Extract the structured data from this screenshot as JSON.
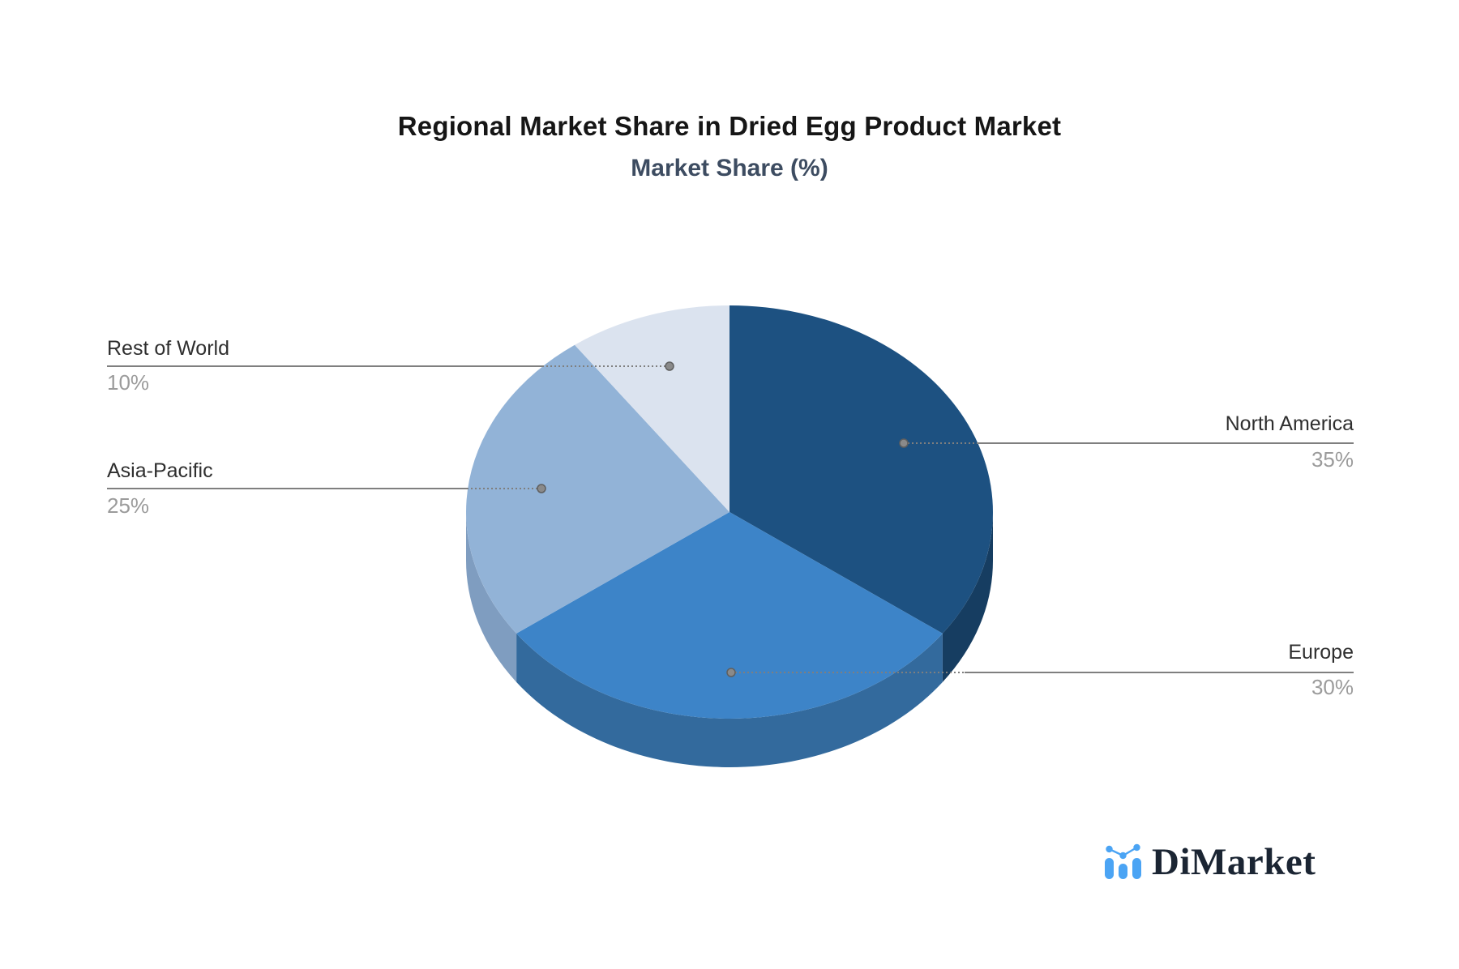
{
  "header": {
    "title": "Regional Market Share in Dried Egg Product Market",
    "subtitle": "Market Share (%)"
  },
  "logo": {
    "text": "DiMarket",
    "icon": "bar-line-chart-icon",
    "bar_color": "#4ba4f4",
    "text_color": "#1b2533"
  },
  "chart_data": {
    "type": "pie",
    "title": "Regional Market Share in Dried Egg Product Market",
    "subtitle": "Market Share (%)",
    "unit": "%",
    "effect": "3d",
    "start_angle_deg": 0,
    "direction": "clockwise",
    "legend_position": "none",
    "series": [
      {
        "name": "North America",
        "value": 35,
        "pct_label": "35%",
        "color": "#1d5181",
        "side_color": "#163d61",
        "label_side": "right"
      },
      {
        "name": "Europe",
        "value": 30,
        "pct_label": "30%",
        "color": "#3d84c8",
        "side_color": "#336a9d",
        "label_side": "right"
      },
      {
        "name": "Asia-Pacific",
        "value": 25,
        "pct_label": "25%",
        "color": "#92b3d7",
        "side_color": "#7f9dc0",
        "label_side": "left"
      },
      {
        "name": "Rest of World",
        "value": 10,
        "pct_label": "10%",
        "color": "#dbe3ef",
        "side_color": "#b9c5d6",
        "label_side": "left"
      }
    ],
    "connector_color": "#7f7f7f",
    "label_text_color": "#2f2f2f",
    "pct_text_color": "#9b9b9b",
    "background_color": "#ffffff"
  }
}
